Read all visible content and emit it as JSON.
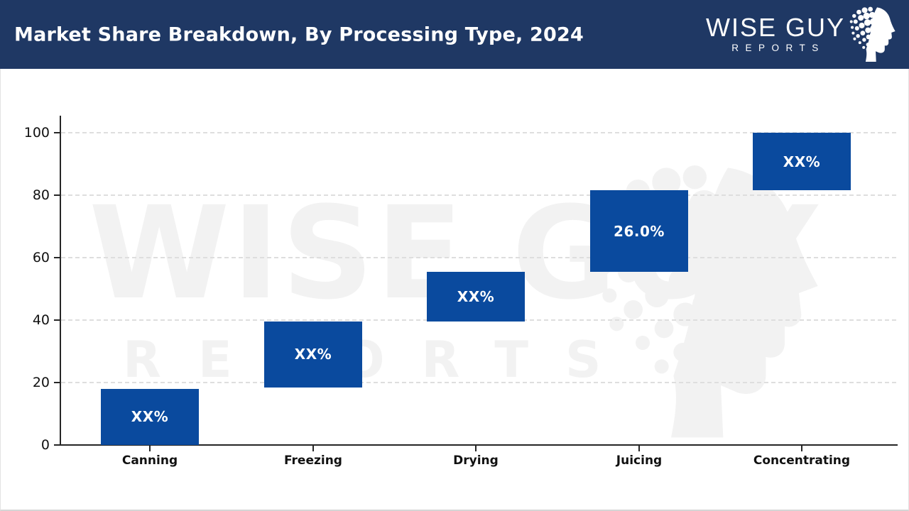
{
  "header": {
    "title": "Market Share Breakdown, By Processing Type, 2024",
    "logo": {
      "primary": "WISE GUY",
      "secondary": "REPORTS"
    }
  },
  "watermark": {
    "line1": "WISE GUY",
    "line2": "REPORTS"
  },
  "icons": {
    "logo_face": "dotted-head-profile",
    "watermark_face": "dotted-head-profile"
  },
  "colors": {
    "header_bg": "#1f3864",
    "bar_fill": "#0a4a9e",
    "bar_label": "#ffffff",
    "axis": "#262626",
    "tick_label": "#111111",
    "gridline": "#dedede",
    "watermark": "#f2f2f2"
  },
  "chart_data": {
    "type": "bar",
    "subtype": "waterfall",
    "title": "Market Share Breakdown, By Processing Type, 2024",
    "xlabel": "",
    "ylabel": "",
    "categories": [
      "Canning",
      "Freezing",
      "Drying",
      "Juicing",
      "Concentrating"
    ],
    "bars": [
      {
        "category": "Canning",
        "base": 0,
        "top": 18,
        "value": 18,
        "value_label": "XX%"
      },
      {
        "category": "Freezing",
        "base": 18.5,
        "top": 39.5,
        "value": 21,
        "value_label": "XX%"
      },
      {
        "category": "Drying",
        "base": 39.5,
        "top": 55.5,
        "value": 16,
        "value_label": "XX%"
      },
      {
        "category": "Juicing",
        "base": 55.5,
        "top": 81.5,
        "value": 26.0,
        "value_label": "26.0%"
      },
      {
        "category": "Concentrating",
        "base": 81.5,
        "top": 100,
        "value": 18.5,
        "value_label": "XX%"
      }
    ],
    "yticks": [
      0,
      20,
      40,
      60,
      80,
      100
    ],
    "ylim": [
      0,
      105.5
    ],
    "grid": "horizontal-dashed",
    "legend": "none"
  }
}
